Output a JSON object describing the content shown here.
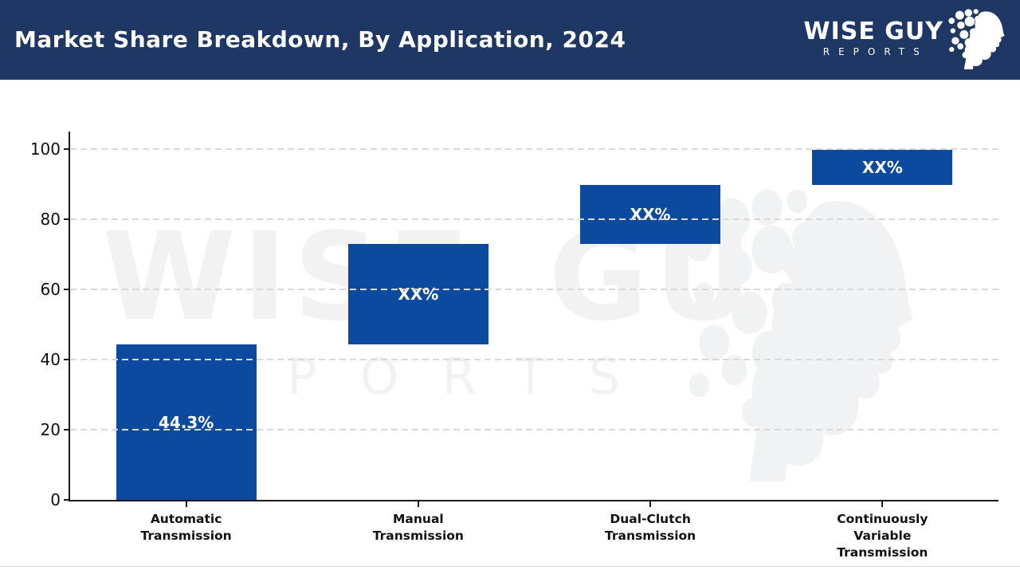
{
  "header": {
    "title": "Market Share Breakdown, By Application, 2024",
    "bg_color": "#1e3765",
    "logo": {
      "line1": "WISE GUY",
      "line2": "REPORTS",
      "icon": "wiseguy-face-icon"
    }
  },
  "watermark": {
    "line1": "WISE GUY",
    "line2": "REPORTS",
    "icon": "wiseguy-face-watermark"
  },
  "chart_data": {
    "type": "bar",
    "subtype": "waterfall",
    "title": "Market Share Breakdown, By Application, 2024",
    "categories": [
      [
        "Automatic",
        "Transmission"
      ],
      [
        "Manual",
        "Transmission"
      ],
      [
        "Dual-Clutch",
        "Transmission"
      ],
      [
        "Continuously",
        "Variable",
        "Transmission"
      ]
    ],
    "segments": [
      {
        "category": "Automatic Transmission",
        "start": 0,
        "end": 44.3,
        "label": "44.3%"
      },
      {
        "category": "Manual Transmission",
        "start": 44.3,
        "end": 73.0,
        "label": "XX%"
      },
      {
        "category": "Dual-Clutch Transmission",
        "start": 73.0,
        "end": 89.8,
        "label": "XX%"
      },
      {
        "category": "Continuously Variable Transmission",
        "start": 89.8,
        "end": 99.8,
        "label": "XX%"
      }
    ],
    "yticks": [
      0,
      20,
      40,
      60,
      80,
      100
    ],
    "ylim": [
      0,
      105
    ],
    "xlabel": "",
    "ylabel": "",
    "grid": true,
    "grid_style": "dashed",
    "legend": null,
    "bar_color": "#0b4a9e",
    "bar_label_color": "#ffffff",
    "axis_color": "#1a1a1a"
  }
}
